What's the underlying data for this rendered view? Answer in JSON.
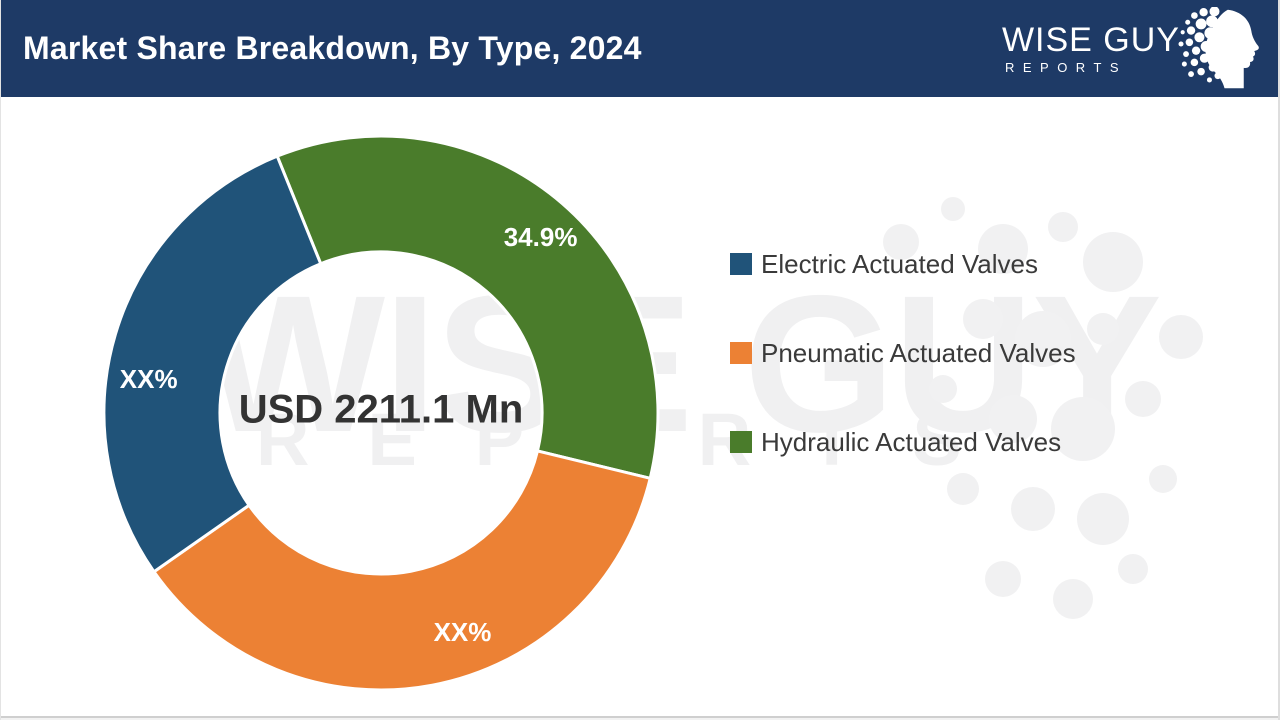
{
  "header": {
    "title": "Market Share Breakdown, By Type, 2024",
    "logo_line1": "WISE GUY",
    "logo_line2": "REPORTS",
    "bg_color": "#1e3a66"
  },
  "watermark": {
    "line1": "WISE GUY",
    "line2": "REPORTS"
  },
  "chart_data": {
    "type": "pie",
    "subtype": "donut",
    "title": "Market Share Breakdown, By Type, 2024",
    "center_label": "USD 2211.1 Mn",
    "legend_position": "right",
    "start_angle_deg_clockwise_from_top": -22,
    "inner_radius_ratio": 0.58,
    "segments": [
      {
        "name": "Electric Actuated Valves",
        "color": "#205379",
        "slice_label": "XX%",
        "value_pct": 28.6,
        "value_is_placeholder": true
      },
      {
        "name": "Pneumatic Actuated Valves",
        "color": "#ec8134",
        "slice_label": "XX%",
        "value_pct": 36.5,
        "value_is_placeholder": true
      },
      {
        "name": "Hydraulic Actuated Valves",
        "color": "#4a7c2b",
        "slice_label": "34.9%",
        "value_pct": 34.9,
        "value_is_placeholder": false
      }
    ],
    "draw_order": [
      2,
      1,
      0
    ]
  }
}
